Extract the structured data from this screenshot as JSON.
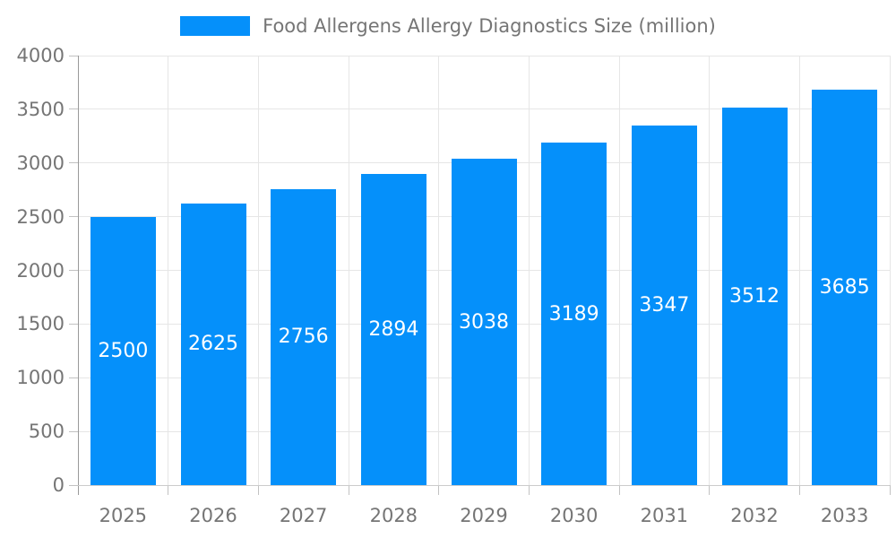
{
  "legend": {
    "swatch_color": "#0590FA",
    "position": "top"
  },
  "chart_data": {
    "type": "bar",
    "title": "Food Allergens Allergy Diagnostics Size (million)",
    "categories": [
      "2025",
      "2026",
      "2027",
      "2028",
      "2029",
      "2030",
      "2031",
      "2032",
      "2033"
    ],
    "values": [
      2500,
      2625,
      2756,
      2894,
      3038,
      3189,
      3347,
      3512,
      3685
    ],
    "xlabel": "",
    "ylabel": "",
    "ylim": [
      0,
      4000
    ],
    "ytick_step": 500,
    "yticks": [
      0,
      500,
      1000,
      1500,
      2000,
      2500,
      3000,
      3500,
      4000
    ],
    "grid": true,
    "legend_position": "top",
    "value_labels": "inside-center-white",
    "colors": {
      "bar": "#0590FA",
      "value_label": "#FFFFFF",
      "axis_text": "#757575",
      "gridline": "#E6E6E6",
      "y_axis_line": "#999999",
      "x_axis_line": "#CCCCCC",
      "tick": "#C2C2C2",
      "background": "#FFFFFF"
    }
  }
}
